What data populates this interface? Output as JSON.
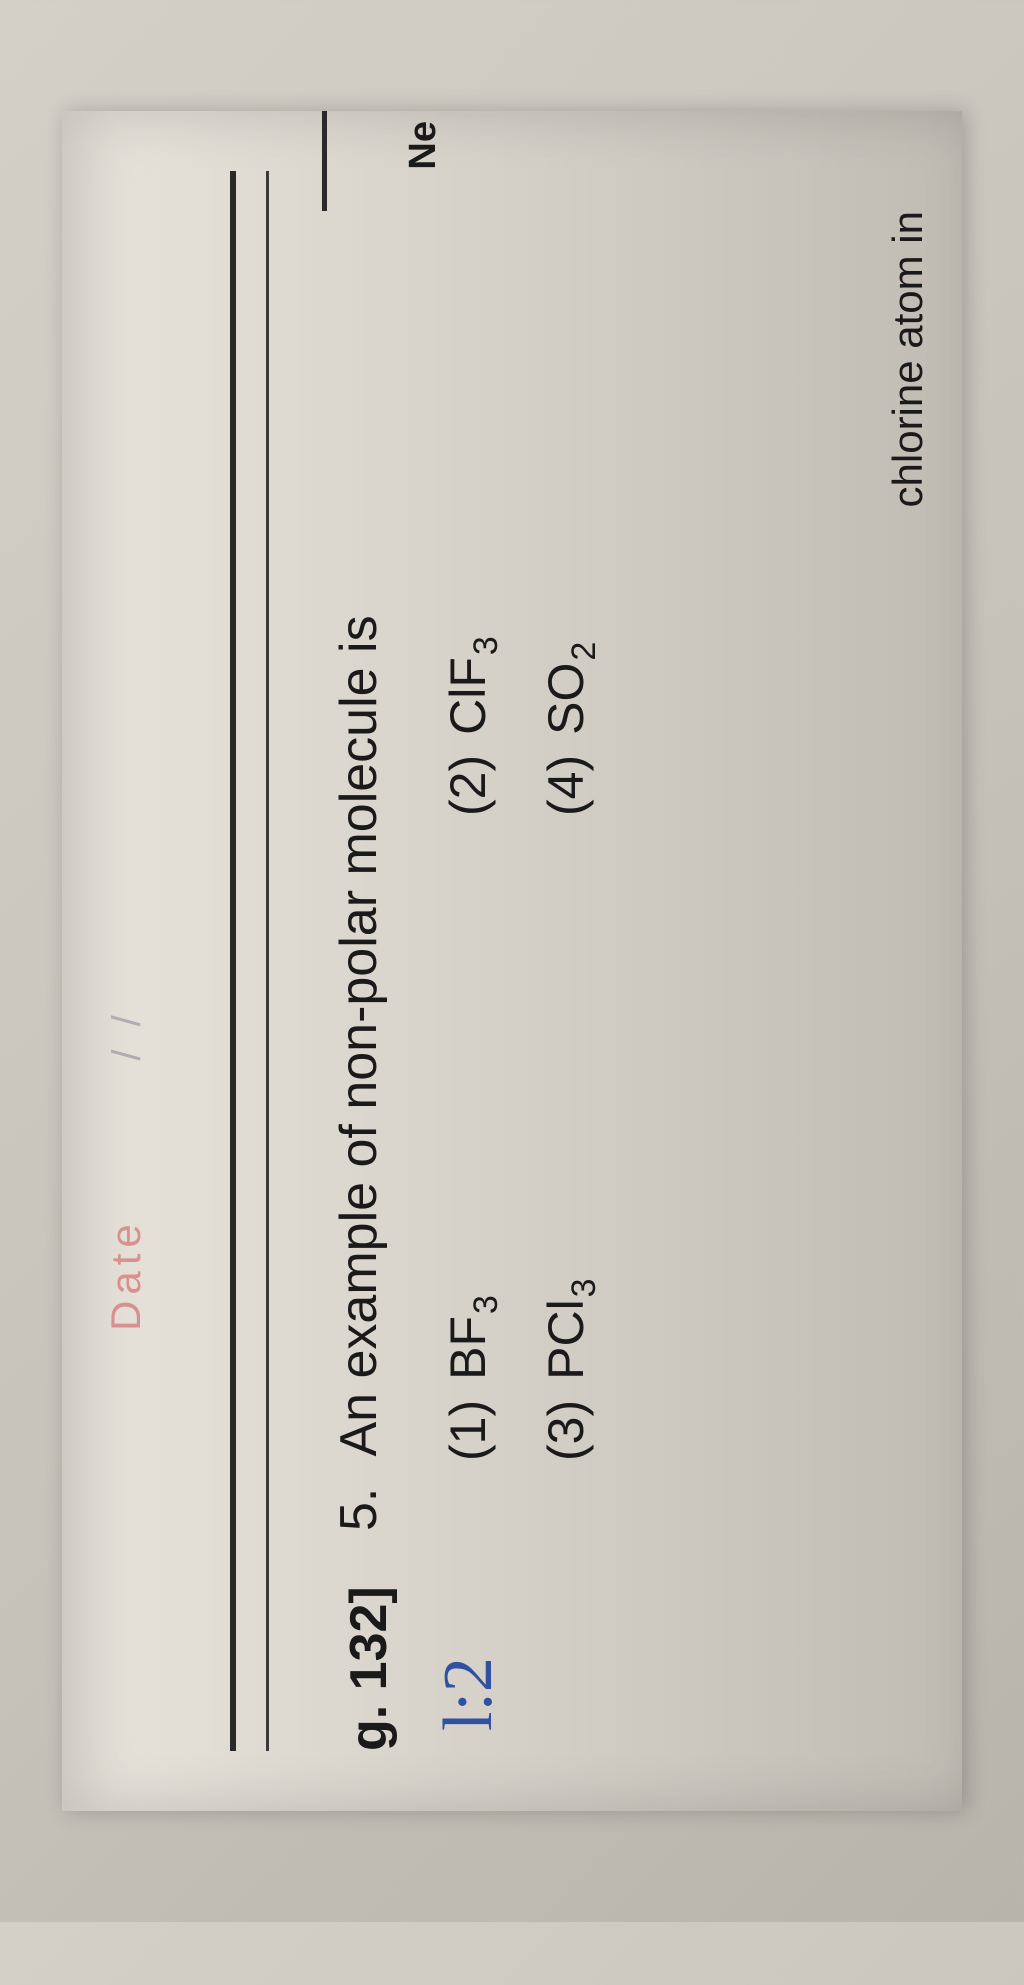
{
  "header": {
    "date_label": "Date",
    "date_slashes": "/    /",
    "shadow_marking": ""
  },
  "question": {
    "page_ref": "g. 132]",
    "handwritten_note": "l:2",
    "number": "5.",
    "text": "An example of non-polar molecule is",
    "options": [
      {
        "num": "(1)",
        "formula_main": "BF",
        "formula_sub": "3"
      },
      {
        "num": "(2)",
        "formula_main": "ClF",
        "formula_sub": "3"
      },
      {
        "num": "(3)",
        "formula_main": "PCl",
        "formula_sub": "3"
      },
      {
        "num": "(4)",
        "formula_main": "SO",
        "formula_sub": "2"
      }
    ]
  },
  "margin": {
    "right_text": "Ne",
    "bottom_partial": "chlorine atom in"
  },
  "colors": {
    "date_color": "#d89090",
    "text_color": "#1a1a1a",
    "handwritten_color": "#3050a0",
    "paper_bg": "#d8d4cc",
    "divider": "#2a2a2a"
  }
}
